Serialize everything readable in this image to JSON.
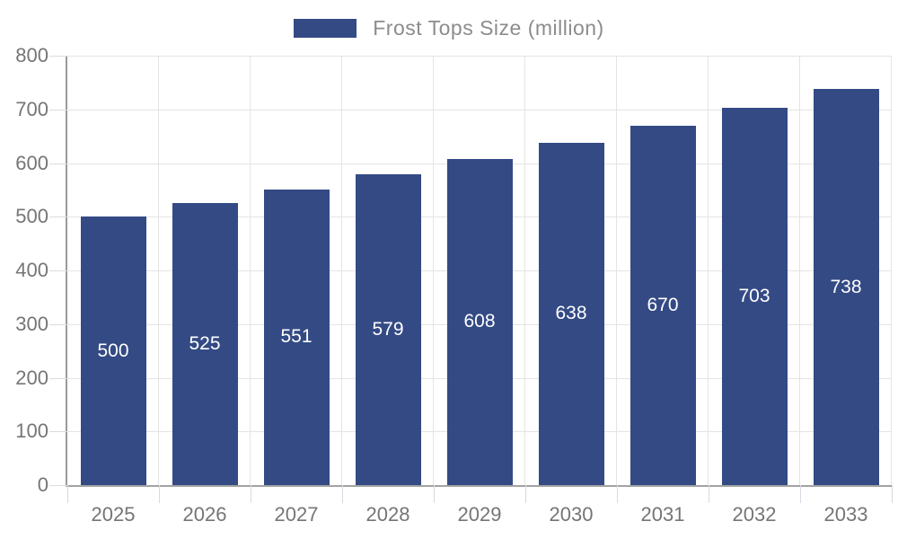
{
  "legend": {
    "label": "Frost Tops Size (million)",
    "swatch_color": "#344a85"
  },
  "colors": {
    "bar": "#344a85",
    "axis_line": "#9a9a9a",
    "gridline": "#e4e4e4",
    "tick_label": "#757575",
    "legend_text": "#8c8c8c",
    "bar_label_text": "#ffffff",
    "background": "#ffffff"
  },
  "chart_data": {
    "type": "bar",
    "title": "Frost Tops Size (million)",
    "series_name": "Frost Tops Size (million)",
    "categories": [
      "2025",
      "2026",
      "2027",
      "2028",
      "2029",
      "2030",
      "2031",
      "2032",
      "2033"
    ],
    "values": [
      500,
      525,
      551,
      579,
      608,
      638,
      670,
      703,
      738
    ],
    "xlabel": "",
    "ylabel": "",
    "ylim": [
      0,
      800
    ],
    "yticks": [
      0,
      100,
      200,
      300,
      400,
      500,
      600,
      700,
      800
    ],
    "grid": true,
    "grid_vertical": true,
    "legend_position": "top-center",
    "bar_value_labels": "inside-center"
  }
}
